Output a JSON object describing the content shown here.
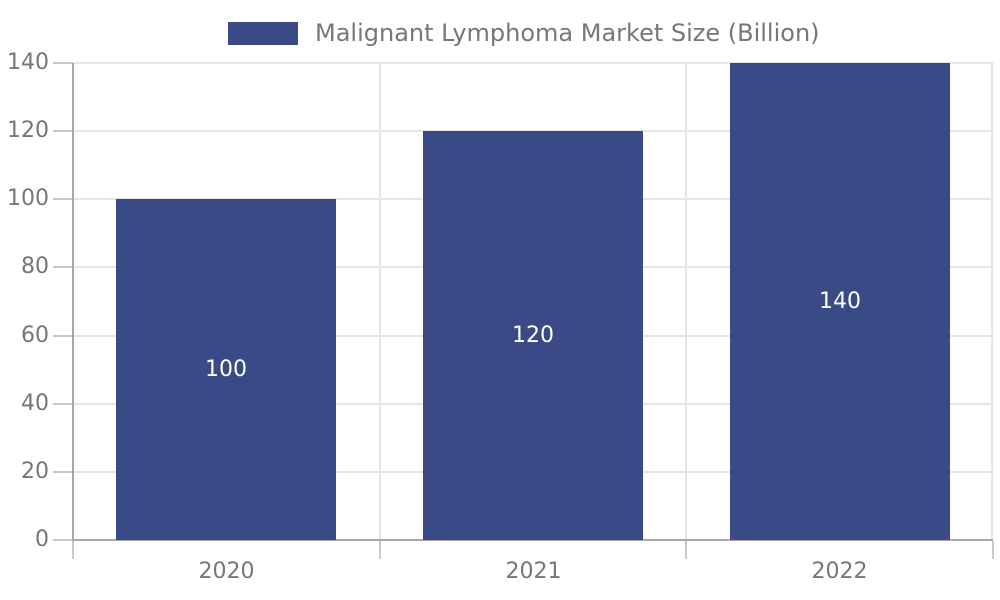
{
  "chart_data": {
    "type": "bar",
    "title": "",
    "xlabel": "",
    "ylabel": "",
    "categories": [
      "2020",
      "2021",
      "2022"
    ],
    "series": [
      {
        "name": "Malignant Lymphoma Market Size (Billion)",
        "values": [
          100,
          120,
          140
        ]
      }
    ],
    "bar_value_labels": [
      "100",
      "120",
      "140"
    ],
    "yticks": [
      0,
      20,
      40,
      60,
      80,
      100,
      120,
      140
    ],
    "ylim": [
      0,
      140
    ],
    "grid": true,
    "legend_position": "top"
  },
  "colors": {
    "bar_fill": "#3a4a87",
    "grid_line": "#e5e5e5",
    "axis_line": "#a8a8a8",
    "tick_mark": "#c8c8cc",
    "axis_label_text": "#76767a",
    "legend_text": "#76767c",
    "bar_value_text": "#ffffff",
    "background": "#ffffff"
  }
}
